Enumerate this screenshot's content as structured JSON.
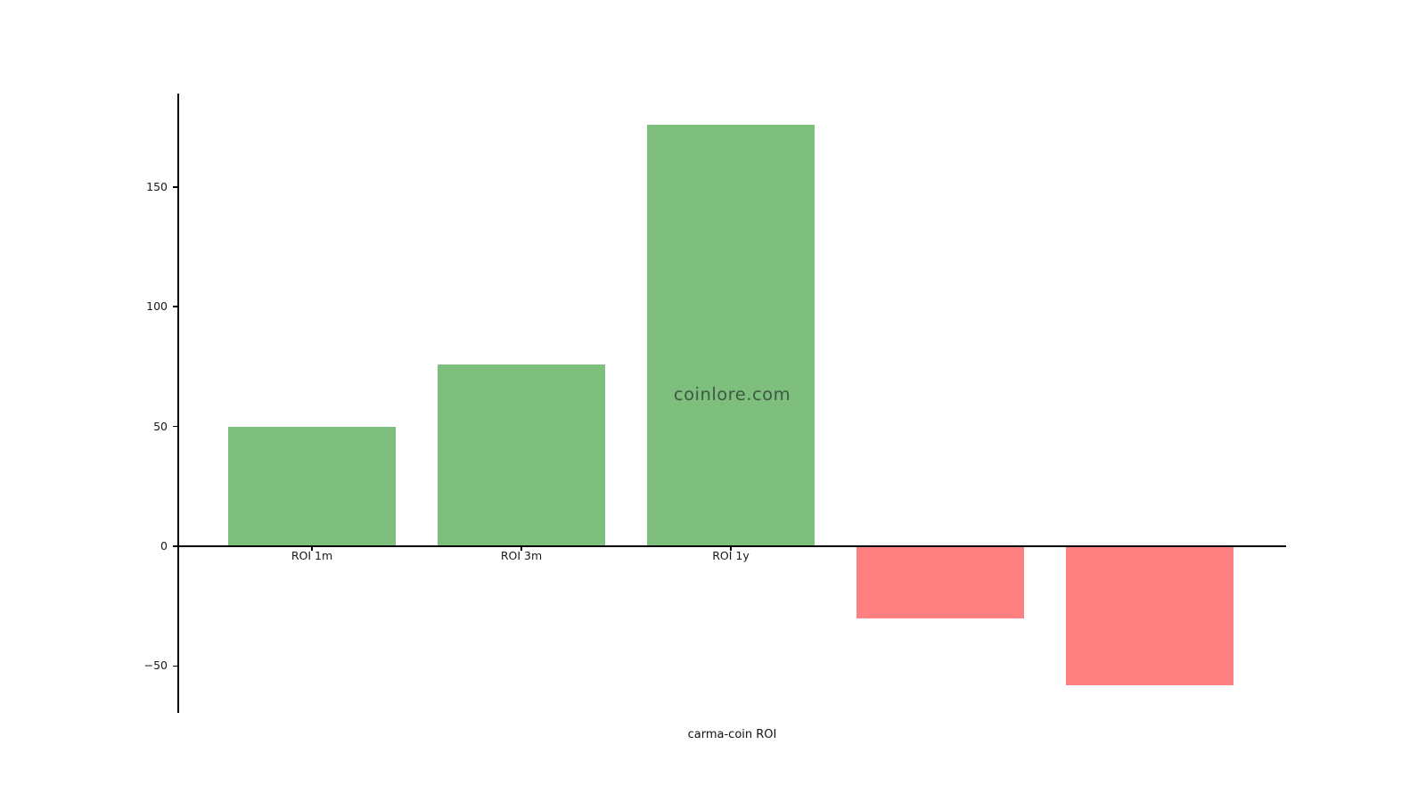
{
  "figure": {
    "watermark": "coinlore.com",
    "xlabel": "carma-coin ROI"
  },
  "colors": {
    "positive_bar": "#7ebf7e",
    "negative_bar": "#ff8080",
    "axis": "#000000",
    "tick_text": "#1a1a1a",
    "watermark_text": "#3a4f3e",
    "background": "#ffffff"
  },
  "chart_data": {
    "type": "bar",
    "title": "carma-coin ROI",
    "xlabel": "carma-coin ROI",
    "ylabel": "",
    "categories": [
      "ROI 1m",
      "ROI 3m",
      "ROI 1y",
      "",
      ""
    ],
    "values": [
      50,
      76,
      176,
      -30,
      -58
    ],
    "bar_colors": [
      "#7ebf7e",
      "#7ebf7e",
      "#7ebf7e",
      "#ff8080",
      "#ff8080"
    ],
    "yticks": [
      150,
      100,
      50,
      0,
      -50
    ],
    "ylim": [
      -69.6,
      189.0
    ],
    "grid": false,
    "legend": null,
    "watermark": "coinlore.com"
  }
}
